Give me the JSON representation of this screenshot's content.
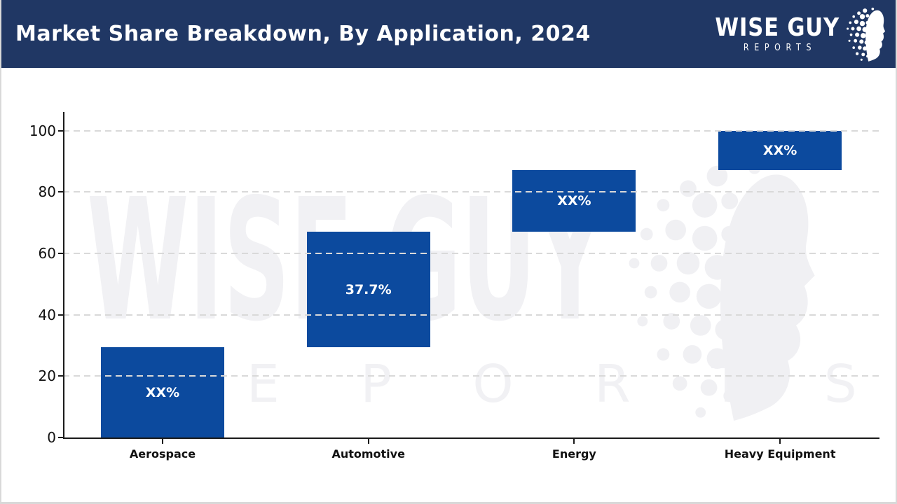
{
  "header": {
    "title": "Market Share Breakdown, By Application, 2024",
    "logo": {
      "line1": "WISE GUY",
      "line2": "REPORTS"
    }
  },
  "watermark": {
    "line1": "WISE GUY",
    "line2": "R E P O R T S"
  },
  "chart_data": {
    "type": "bar",
    "subtype": "waterfall",
    "title": "Market Share Breakdown, By Application, 2024",
    "categories": [
      "Aerospace",
      "Automotive",
      "Energy",
      "Heavy Equipment"
    ],
    "values": [
      29.4,
      37.7,
      20.1,
      12.8
    ],
    "cumulative_start": [
      0,
      29.4,
      67.1,
      87.2
    ],
    "cumulative_end": [
      29.4,
      67.1,
      87.2,
      100
    ],
    "bar_labels": [
      "XX%",
      "37.7%",
      "XX%",
      "XX%"
    ],
    "ylim": [
      0,
      100
    ],
    "yticks": [
      0,
      20,
      40,
      60,
      80,
      100
    ],
    "xlabel": "",
    "ylabel": "",
    "grid": "horizontal-dashed",
    "legend": "none",
    "bar_color": "#0c4a9e",
    "label_color": "#ffffff"
  },
  "colors": {
    "header_bg": "#203764",
    "bar": "#0c4a9e",
    "grid": "#d9d9d9",
    "axis": "#1a1a1a",
    "watermark": "#f1f1f4"
  }
}
